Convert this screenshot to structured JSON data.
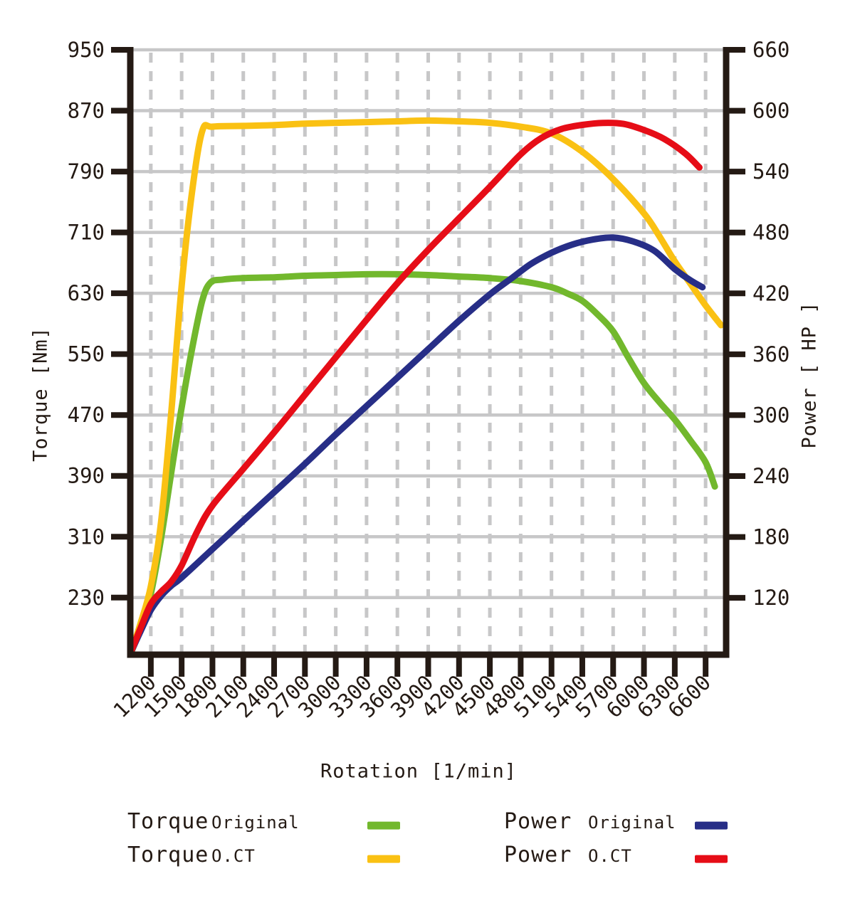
{
  "chart_data": {
    "type": "line",
    "title": "",
    "xlabel": "Rotation [1/min]",
    "x_ticks": [
      1200,
      1500,
      1800,
      2100,
      2400,
      2700,
      3000,
      3300,
      3600,
      3900,
      4200,
      4500,
      4800,
      5100,
      5400,
      5700,
      6000,
      6300,
      6600
    ],
    "x_range": [
      1000,
      6800
    ],
    "grid": {
      "horizontal": "solid",
      "vertical": "dashed"
    },
    "left_axis": {
      "label": "Torque [Nm]",
      "unit": "Nm",
      "ticks": [
        950,
        870,
        790,
        710,
        630,
        550,
        470,
        390,
        310,
        230
      ],
      "range": [
        155,
        950
      ]
    },
    "right_axis": {
      "label": "Power [ HP ]",
      "unit": "HP",
      "ticks": [
        660,
        600,
        540,
        480,
        420,
        360,
        300,
        240,
        180,
        120
      ],
      "range": [
        64,
        660
      ]
    },
    "series": [
      {
        "name": "Torque Original",
        "axis": "left",
        "color": "#72b82d",
        "points": [
          [
            1000,
            155
          ],
          [
            1100,
            190
          ],
          [
            1200,
            235
          ],
          [
            1300,
            308
          ],
          [
            1400,
            395
          ],
          [
            1500,
            480
          ],
          [
            1600,
            556
          ],
          [
            1700,
            620
          ],
          [
            1780,
            644
          ],
          [
            1900,
            648
          ],
          [
            2100,
            650
          ],
          [
            2400,
            651
          ],
          [
            2700,
            653
          ],
          [
            3000,
            654
          ],
          [
            3300,
            655
          ],
          [
            3600,
            655
          ],
          [
            3900,
            654
          ],
          [
            4200,
            652
          ],
          [
            4500,
            650
          ],
          [
            4800,
            646
          ],
          [
            5100,
            638
          ],
          [
            5250,
            630
          ],
          [
            5400,
            620
          ],
          [
            5550,
            602
          ],
          [
            5700,
            580
          ],
          [
            5850,
            545
          ],
          [
            6000,
            512
          ],
          [
            6150,
            487
          ],
          [
            6300,
            464
          ],
          [
            6450,
            437
          ],
          [
            6600,
            408
          ],
          [
            6690,
            376
          ]
        ]
      },
      {
        "name": "Torque O.CT",
        "axis": "left",
        "color": "#fac113",
        "points": [
          [
            1000,
            155
          ],
          [
            1100,
            196
          ],
          [
            1200,
            245
          ],
          [
            1300,
            330
          ],
          [
            1400,
            475
          ],
          [
            1500,
            640
          ],
          [
            1600,
            762
          ],
          [
            1700,
            843
          ],
          [
            1800,
            849
          ],
          [
            2100,
            850
          ],
          [
            2400,
            851
          ],
          [
            2700,
            853
          ],
          [
            3000,
            854
          ],
          [
            3300,
            855
          ],
          [
            3600,
            856
          ],
          [
            3900,
            857
          ],
          [
            4200,
            856
          ],
          [
            4500,
            854
          ],
          [
            4800,
            849
          ],
          [
            5100,
            840
          ],
          [
            5400,
            816
          ],
          [
            5700,
            780
          ],
          [
            6000,
            735
          ],
          [
            6150,
            705
          ],
          [
            6300,
            672
          ],
          [
            6450,
            643
          ],
          [
            6600,
            614
          ],
          [
            6750,
            588
          ]
        ]
      },
      {
        "name": "Power Original",
        "axis": "right",
        "color": "#272e87",
        "points": [
          [
            1000,
            65
          ],
          [
            1100,
            87
          ],
          [
            1200,
            108
          ],
          [
            1300,
            122
          ],
          [
            1400,
            132
          ],
          [
            1500,
            140
          ],
          [
            1800,
            168
          ],
          [
            2100,
            196
          ],
          [
            2400,
            224
          ],
          [
            2700,
            252
          ],
          [
            3000,
            281
          ],
          [
            3300,
            309
          ],
          [
            3600,
            337
          ],
          [
            3900,
            365
          ],
          [
            4200,
            393
          ],
          [
            4500,
            419
          ],
          [
            4700,
            434
          ],
          [
            4900,
            449
          ],
          [
            5100,
            460
          ],
          [
            5300,
            468
          ],
          [
            5500,
            473
          ],
          [
            5700,
            475
          ],
          [
            5900,
            471
          ],
          [
            6100,
            462
          ],
          [
            6300,
            444
          ],
          [
            6450,
            433
          ],
          [
            6570,
            426
          ]
        ]
      },
      {
        "name": "Power O.CT",
        "axis": "right",
        "color": "#e60d17",
        "points": [
          [
            1000,
            65
          ],
          [
            1100,
            90
          ],
          [
            1200,
            114
          ],
          [
            1300,
            126
          ],
          [
            1400,
            136
          ],
          [
            1500,
            152
          ],
          [
            1650,
            185
          ],
          [
            1800,
            211
          ],
          [
            2100,
            247
          ],
          [
            2400,
            283
          ],
          [
            2700,
            320
          ],
          [
            3000,
            357
          ],
          [
            3300,
            394
          ],
          [
            3600,
            430
          ],
          [
            3900,
            463
          ],
          [
            4200,
            494
          ],
          [
            4500,
            525
          ],
          [
            4800,
            557
          ],
          [
            5000,
            573
          ],
          [
            5200,
            582
          ],
          [
            5400,
            586
          ],
          [
            5600,
            588
          ],
          [
            5800,
            587
          ],
          [
            6000,
            581
          ],
          [
            6200,
            572
          ],
          [
            6400,
            558
          ],
          [
            6540,
            544
          ]
        ]
      }
    ],
    "legend": {
      "position": "bottom",
      "entries": [
        {
          "group": "Torque",
          "variant": "Original",
          "color": "#72b82d"
        },
        {
          "group": "Torque",
          "variant": "O.CT",
          "color": "#fac113"
        },
        {
          "group": "Power",
          "variant": "Original",
          "color": "#272e87"
        },
        {
          "group": "Power",
          "variant": "O.CT",
          "color": "#e60d17"
        }
      ]
    },
    "colors": {
      "axis": "#241a14",
      "grid": "#c7c7c8",
      "background": "#ffffff"
    }
  }
}
